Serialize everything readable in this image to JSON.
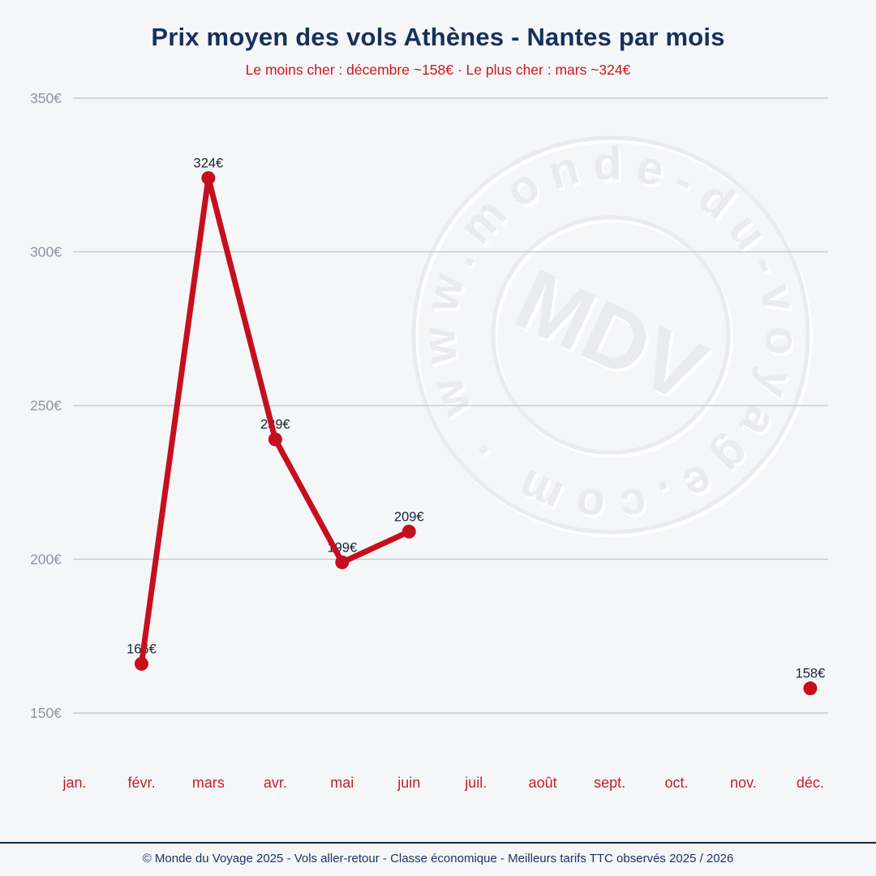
{
  "header": {
    "title": "Prix moyen des vols Athènes - Nantes par mois",
    "subtitle": "Le moins cher : décembre ~158€ · Le plus cher : mars ~324€"
  },
  "chart_data": {
    "type": "line",
    "categories": [
      "jan.",
      "févr.",
      "mars",
      "avr.",
      "mai",
      "juin",
      "juil.",
      "août",
      "sept.",
      "oct.",
      "nov.",
      "déc."
    ],
    "values": [
      null,
      166,
      324,
      239,
      199,
      209,
      null,
      null,
      null,
      null,
      null,
      158
    ],
    "point_labels": [
      "",
      "166€",
      "324€",
      "239€",
      "199€",
      "209€",
      "",
      "",
      "",
      "",
      "",
      "158€"
    ],
    "y_ticks": [
      {
        "value": 150,
        "label": "150€"
      },
      {
        "value": 200,
        "label": "200€"
      },
      {
        "value": 250,
        "label": "250€"
      },
      {
        "value": 300,
        "label": "300€"
      },
      {
        "value": 350,
        "label": "350€"
      }
    ],
    "ylim": [
      150,
      350
    ],
    "grid": true,
    "legend": "none",
    "xlabel": "",
    "ylabel": "",
    "line_color": "#c50f1e",
    "point_color": "#c50f1e",
    "point_label_color": "#1b2437",
    "month_label_color": "#c3202a",
    "ytick_color": "#8b95a6",
    "gridline_color": "#c6cbd4"
  },
  "watermark": {
    "ring_text": "www.monde-du-voyage.com ·",
    "center_text": "MDV",
    "color": "#eaebee"
  },
  "footer": {
    "text": "© Monde du Voyage 2025 - Vols aller-retour - Classe économique - Meilleurs tarifs TTC observés 2025 / 2026"
  }
}
